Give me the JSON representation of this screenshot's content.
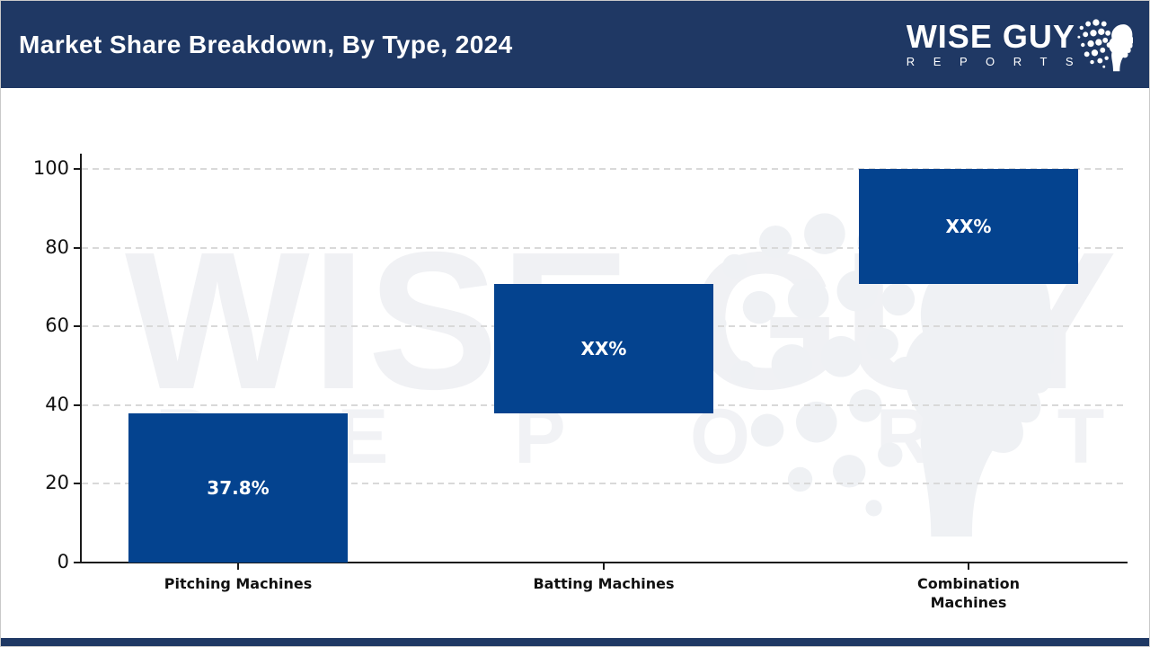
{
  "header": {
    "title": "Market Share Breakdown, By Type, 2024",
    "background": "#1f3864",
    "logo": {
      "line1": "WISE GUY",
      "line2": "R E P O R T S",
      "icon": "face-profile-dots-icon"
    }
  },
  "watermark": {
    "line1": "WISE GUY",
    "line2": "R E P O R T S",
    "icon": "face-profile-dots-icon"
  },
  "chart_data": {
    "type": "bar",
    "subtype": "floating-waterfall-market-share",
    "title": "Market Share Breakdown, By Type, 2024",
    "categories": [
      "Pitching Machines",
      "Batting Machines",
      "Combination Machines"
    ],
    "bars": [
      {
        "category": "Pitching Machines",
        "category_lines": [
          "Pitching Machines"
        ],
        "start": 0,
        "end": 37.8,
        "label": "37.8%"
      },
      {
        "category": "Batting Machines",
        "category_lines": [
          "Batting Machines"
        ],
        "start": 37.8,
        "end": 70.8,
        "label": "XX%"
      },
      {
        "category": "Combination Machines",
        "category_lines": [
          "Combination",
          "Machines"
        ],
        "start": 70.8,
        "end": 100,
        "label": "XX%"
      }
    ],
    "xlabel": "",
    "ylabel": "",
    "ylim": [
      0,
      100
    ],
    "yticks": [
      0,
      20,
      40,
      60,
      80,
      100
    ],
    "grid": "horizontal-dashed",
    "legend": "none",
    "bar_color": "#04438f",
    "bar_label_color": "#ffffff",
    "axis_color": "#1a1a1a",
    "gridline_color": "#d9d9d9"
  },
  "footer": {
    "background": "#1f3864"
  }
}
